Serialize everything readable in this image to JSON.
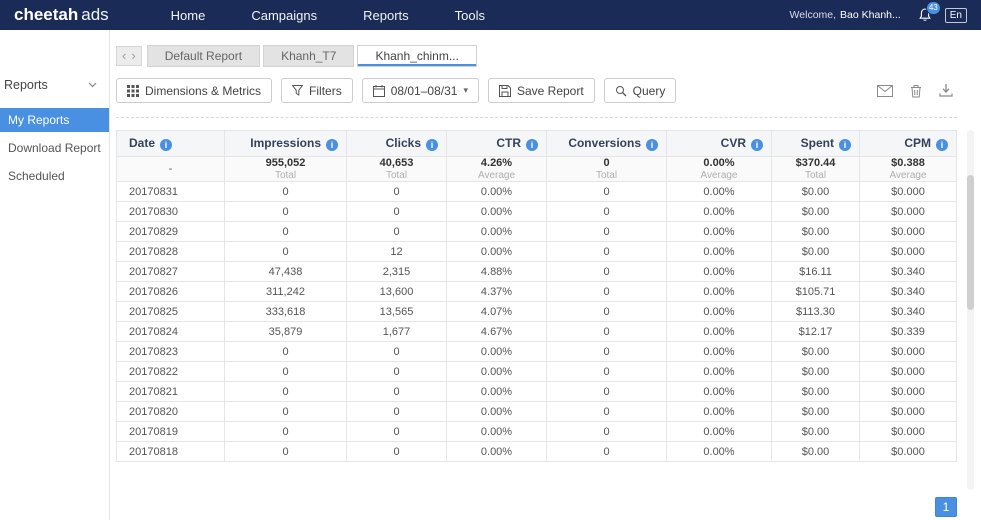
{
  "navbar": {
    "logo": {
      "bold": "cheetah",
      "light": "ads"
    },
    "items": [
      "Home",
      "Campaigns",
      "Reports",
      "Tools"
    ],
    "welcome": "Welcome,",
    "username": "Bao Khanh...",
    "notification_count": "43",
    "language": "En"
  },
  "sidebar": {
    "group": "Reports",
    "items": [
      {
        "label": "My Reports",
        "active": true
      },
      {
        "label": "Download Report",
        "active": false
      },
      {
        "label": "Scheduled",
        "active": false
      }
    ]
  },
  "tabs": [
    {
      "label": "Default Report",
      "active": false
    },
    {
      "label": "Khanh_T7",
      "active": false
    },
    {
      "label": "Khanh_chinm...",
      "active": true
    }
  ],
  "toolbar": {
    "dimensions_metrics": "Dimensions & Metrics",
    "filters": "Filters",
    "date_range": "08/01–08/31",
    "save_report": "Save Report",
    "query": "Query"
  },
  "table": {
    "columns": [
      "Date",
      "Impressions",
      "Clicks",
      "CTR",
      "Conversions",
      "CVR",
      "Spent",
      "CPM"
    ],
    "summary": {
      "date": "-",
      "cells": [
        {
          "value": "955,052",
          "sub": "Total"
        },
        {
          "value": "40,653",
          "sub": "Total"
        },
        {
          "value": "4.26%",
          "sub": "Average"
        },
        {
          "value": "0",
          "sub": "Total"
        },
        {
          "value": "0.00%",
          "sub": "Average"
        },
        {
          "value": "$370.44",
          "sub": "Total"
        },
        {
          "value": "$0.388",
          "sub": "Average"
        }
      ]
    },
    "rows": [
      [
        "20170831",
        "0",
        "0",
        "0.00%",
        "0",
        "0.00%",
        "$0.00",
        "$0.000"
      ],
      [
        "20170830",
        "0",
        "0",
        "0.00%",
        "0",
        "0.00%",
        "$0.00",
        "$0.000"
      ],
      [
        "20170829",
        "0",
        "0",
        "0.00%",
        "0",
        "0.00%",
        "$0.00",
        "$0.000"
      ],
      [
        "20170828",
        "0",
        "12",
        "0.00%",
        "0",
        "0.00%",
        "$0.00",
        "$0.000"
      ],
      [
        "20170827",
        "47,438",
        "2,315",
        "4.88%",
        "0",
        "0.00%",
        "$16.11",
        "$0.340"
      ],
      [
        "20170826",
        "311,242",
        "13,600",
        "4.37%",
        "0",
        "0.00%",
        "$105.71",
        "$0.340"
      ],
      [
        "20170825",
        "333,618",
        "13,565",
        "4.07%",
        "0",
        "0.00%",
        "$113.30",
        "$0.340"
      ],
      [
        "20170824",
        "35,879",
        "1,677",
        "4.67%",
        "0",
        "0.00%",
        "$12.17",
        "$0.339"
      ],
      [
        "20170823",
        "0",
        "0",
        "0.00%",
        "0",
        "0.00%",
        "$0.00",
        "$0.000"
      ],
      [
        "20170822",
        "0",
        "0",
        "0.00%",
        "0",
        "0.00%",
        "$0.00",
        "$0.000"
      ],
      [
        "20170821",
        "0",
        "0",
        "0.00%",
        "0",
        "0.00%",
        "$0.00",
        "$0.000"
      ],
      [
        "20170820",
        "0",
        "0",
        "0.00%",
        "0",
        "0.00%",
        "$0.00",
        "$0.000"
      ],
      [
        "20170819",
        "0",
        "0",
        "0.00%",
        "0",
        "0.00%",
        "$0.00",
        "$0.000"
      ],
      [
        "20170818",
        "0",
        "0",
        "0.00%",
        "0",
        "0.00%",
        "$0.00",
        "$0.000"
      ]
    ]
  },
  "pagination": {
    "current_page": "1"
  },
  "icons": {
    "info": "i",
    "tab_prev": "‹",
    "tab_next": "›",
    "caret_down": "▾"
  },
  "colors": {
    "accent": "#4a90e2",
    "navbar_bg": "#1a2b57"
  }
}
